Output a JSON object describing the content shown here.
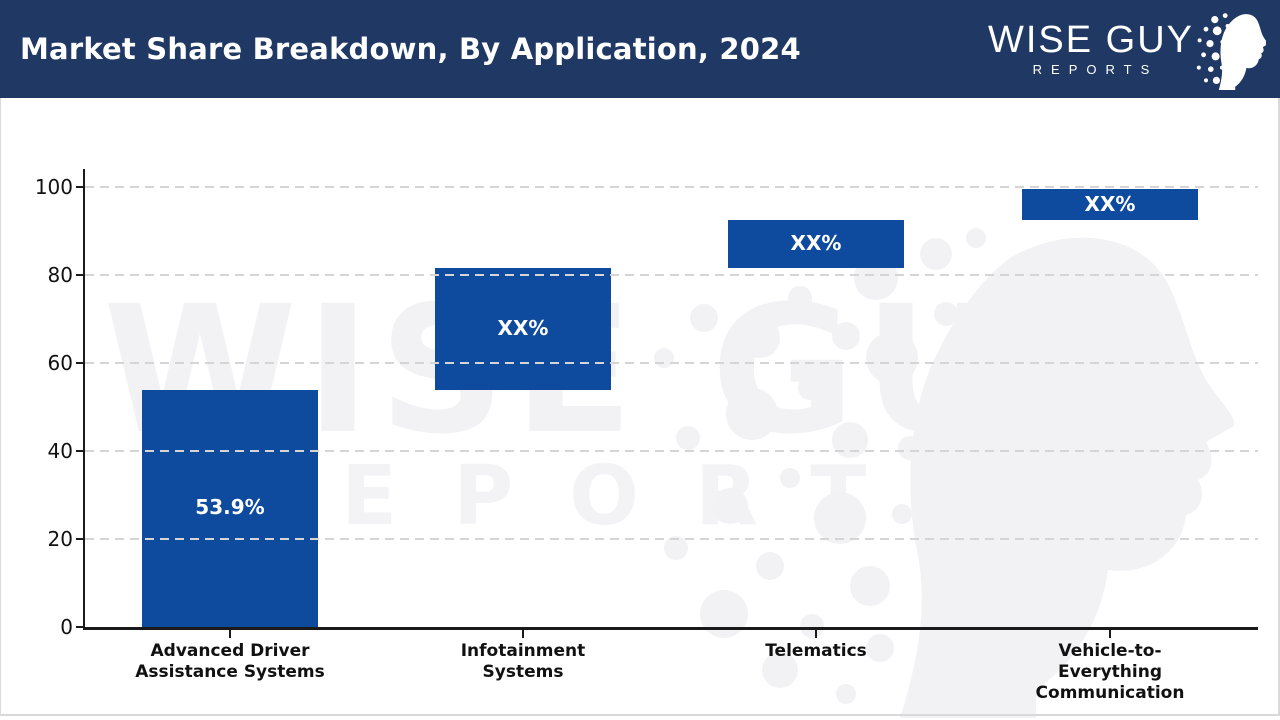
{
  "header": {
    "title": "Market Share Breakdown, By Application, 2024",
    "logo": {
      "line1": "WISE GUY",
      "line2": "REPORTS"
    }
  },
  "watermark": {
    "line1": "WISE GUY",
    "line2": "REPORTS"
  },
  "chart_data": {
    "type": "bar",
    "variant": "floating-waterfall",
    "title": "Market Share Breakdown, By Application, 2024",
    "categories": [
      "Advanced Driver Assistance Systems",
      "Infotainment Systems",
      "Telematics",
      "Vehicle-to-Everything Communication"
    ],
    "category_label_lines": [
      [
        "Advanced Driver",
        "Assistance Systems"
      ],
      [
        "Infotainment",
        "Systems"
      ],
      [
        "Telematics"
      ],
      [
        "Vehicle-to-",
        "Everything",
        "Communication"
      ]
    ],
    "series": [
      {
        "name": "Market share (%)",
        "values": [
          53.9,
          27.5,
          10.9,
          7.1
        ],
        "segment_start": [
          0,
          53.9,
          81.4,
          92.3
        ],
        "segment_end": [
          53.9,
          81.4,
          92.3,
          99.4
        ]
      }
    ],
    "bar_labels": [
      "53.9%",
      "XX%",
      "XX%",
      "XX%"
    ],
    "yticks": [
      0,
      20,
      40,
      60,
      80,
      100
    ],
    "ylim": [
      0,
      104
    ],
    "xlabel": "",
    "ylabel": "",
    "grid": "horizontal-dashed",
    "legend": "none",
    "bar_color": "#0e4a9d",
    "bar_label_color": "#ffffff"
  },
  "colors": {
    "header_bg": "#1f3864",
    "bar_blue": "#0e4a9d",
    "gridline": "#d5d5d5",
    "axis": "#1a1a1a",
    "watermark": "#f2f2f4",
    "frame": "#d9d9d9"
  }
}
